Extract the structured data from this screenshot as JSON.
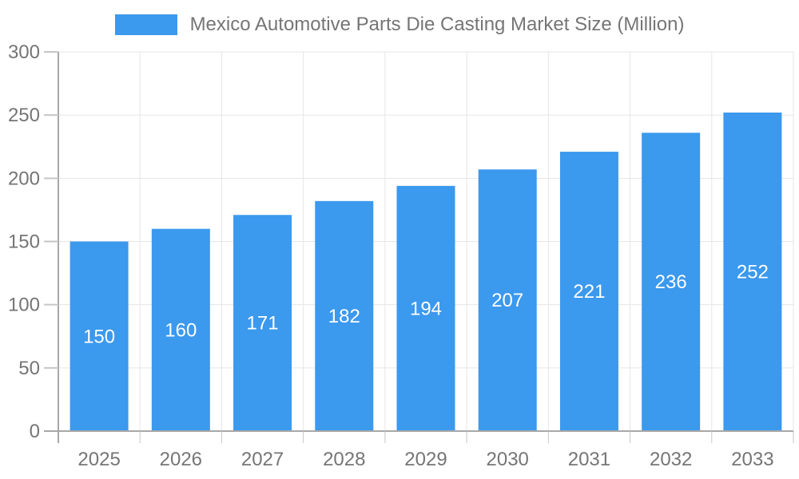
{
  "page": {
    "background_color": "#ffffff"
  },
  "legend": {
    "label": "Mexico Automotive Parts Die Casting Market Size (Million)",
    "swatch_color": "#3b99ee",
    "position": "top-center"
  },
  "chart_data": {
    "type": "bar",
    "title": "Mexico Automotive Parts Die Casting Market Size (Million)",
    "series_name": "Mexico Automotive Parts Die Casting Market Size (Million)",
    "categories": [
      "2025",
      "2026",
      "2027",
      "2028",
      "2029",
      "2030",
      "2031",
      "2032",
      "2033"
    ],
    "values": [
      150,
      160,
      171,
      182,
      194,
      207,
      221,
      236,
      252
    ],
    "xlabel": "",
    "ylabel": "",
    "ylim": [
      0,
      300
    ],
    "yticks": [
      0,
      50,
      100,
      150,
      200,
      250,
      300
    ],
    "grid": true,
    "legend_position": "top-center",
    "bar_color": "#3b99ee",
    "bar_label_color": "#ffffff",
    "axis_label_color": "#757575",
    "gridline_color": "#e6e6e6",
    "tick_color": "#c6c6c6",
    "axis_line_color": "#a8a8a8",
    "label_font_size": 24
  }
}
